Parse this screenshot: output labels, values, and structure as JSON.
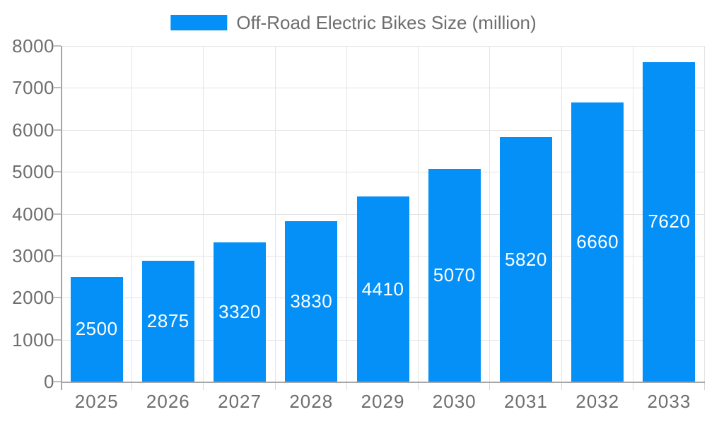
{
  "legend": {
    "label": "Off-Road Electric Bikes Size (million)"
  },
  "colors": {
    "bar": "#0590F8",
    "bar_label": "#FFFFFF",
    "grid": "#E4E4E4",
    "axis": "#A6A6A6",
    "major_tick": "#BDBDBD",
    "minor_tick": "#D8D8D8",
    "text": "#6E6E6E",
    "background": "#FFFFFF"
  },
  "chart_data": {
    "type": "bar",
    "title": "Off-Road Electric Bikes Size (million)",
    "categories": [
      "2025",
      "2026",
      "2027",
      "2028",
      "2029",
      "2030",
      "2031",
      "2032",
      "2033"
    ],
    "values": [
      2500,
      2875,
      3320,
      3830,
      4410,
      5070,
      5820,
      6660,
      7620
    ],
    "xlabel": "",
    "ylabel": "",
    "ylim": [
      0,
      8000
    ],
    "ytick_step": 1000,
    "ytick_labels": [
      "0",
      "1000",
      "2000",
      "3000",
      "4000",
      "5000",
      "6000",
      "7000",
      "8000"
    ],
    "grid": true,
    "legend_position": "top",
    "value_label_position": "inside-center"
  }
}
